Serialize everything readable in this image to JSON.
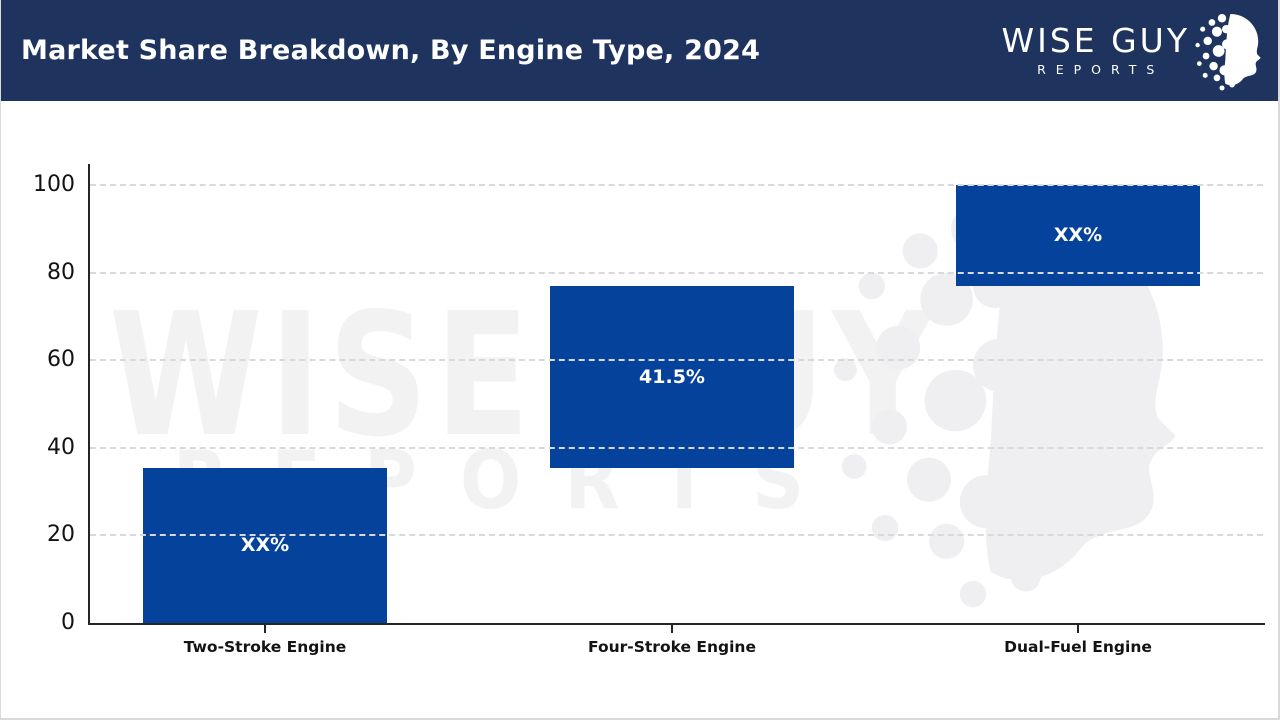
{
  "header": {
    "title": "Market Share Breakdown, By Engine Type, 2024",
    "logo": {
      "line1": "WISE GUY",
      "line2": "REPORTS"
    }
  },
  "watermark": {
    "line1": "WISE GUY",
    "line2": "REPORTS"
  },
  "chart_data": {
    "type": "bar",
    "subtype": "waterfall-stacked-breakdown",
    "title": "Market Share Breakdown, By Engine Type, 2024",
    "categories": [
      "Two-Stroke Engine",
      "Four-Stroke Engine",
      "Dual-Fuel Engine"
    ],
    "segments": [
      {
        "category": "Two-Stroke Engine",
        "start": 0,
        "end": 35.5,
        "label": "XX%"
      },
      {
        "category": "Four-Stroke Engine",
        "start": 35.5,
        "end": 77,
        "label": "41.5%"
      },
      {
        "category": "Dual-Fuel Engine",
        "start": 77,
        "end": 100,
        "label": "XX%"
      }
    ],
    "yticks": [
      0,
      20,
      40,
      60,
      80,
      100
    ],
    "ylim": [
      0,
      105
    ],
    "xlabel": "",
    "ylabel": "",
    "grid": "dashed-horizontal",
    "legend": "none",
    "bar_color": "#05429b",
    "bar_label_color": "#ffffff"
  },
  "colors": {
    "header_bg": "#1f335f",
    "axis": "#252525",
    "grid": "#d9d9d9",
    "tick_text": "#131313",
    "watermark": "#f2f2f3"
  }
}
